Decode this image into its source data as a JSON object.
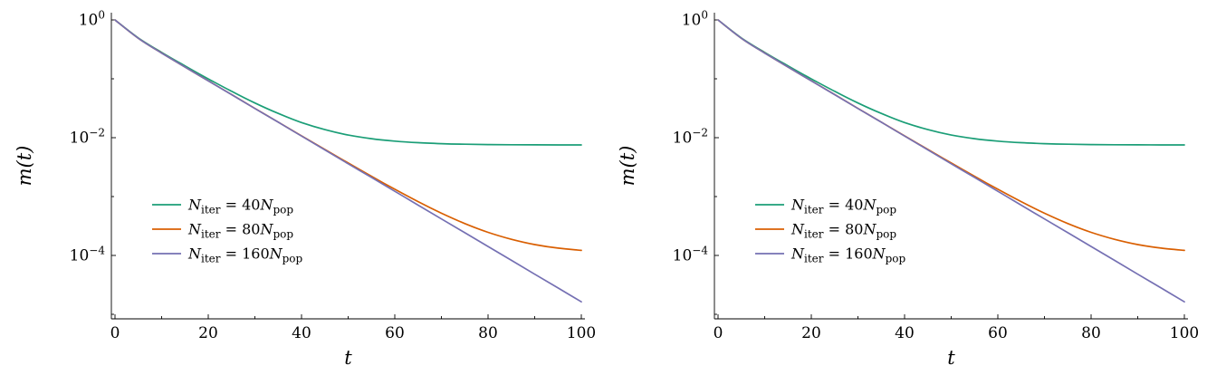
{
  "figure": {
    "background": "#ffffff",
    "panel_count": 2
  },
  "chart_data": [
    {
      "type": "line",
      "panel": "left",
      "title": "",
      "xlabel": "t",
      "ylabel": "m(t)",
      "xlim": [
        0,
        100
      ],
      "ylim": [
        1e-05,
        1
      ],
      "yscale": "log",
      "grid": false,
      "xticks": [
        0,
        20,
        40,
        60,
        80,
        100
      ],
      "xminorticks": [
        10,
        30,
        50,
        70,
        90
      ],
      "ytick_labels": [
        "10^0",
        "10^-2",
        "10^-4"
      ],
      "ytick_values": [
        1,
        0.01,
        0.0001
      ],
      "yminor_exponents": [
        -1,
        -3,
        -5
      ],
      "legend_position": "center-left",
      "axis_color": "#000000",
      "x": [
        0,
        5,
        10,
        15,
        20,
        25,
        30,
        35,
        40,
        45,
        50,
        55,
        60,
        65,
        70,
        75,
        80,
        85,
        90,
        95,
        100
      ],
      "series": [
        {
          "name": "N_iter = 40N_pop",
          "color": "#1b9e77",
          "plateau": 0.0075,
          "values": [
            1.0,
            0.495,
            0.281,
            0.166,
            0.0998,
            0.0613,
            0.0388,
            0.0258,
            0.0181,
            0.0137,
            0.0111,
            0.00961,
            0.00873,
            0.00822,
            0.00792,
            0.00774,
            0.00764,
            0.00758,
            0.00755,
            0.00753,
            0.00752
          ]
        },
        {
          "name": "N_iter = 80N_pop",
          "color": "#d95f02",
          "plateau": 0.000105,
          "values": [
            1.0,
            0.4874,
            0.274,
            0.1586,
            0.0924,
            0.0539,
            0.0314,
            0.0184,
            0.01075,
            0.00631,
            0.00372,
            0.00221,
            0.00133,
            0.00082,
            0.000522,
            0.000348,
            0.000247,
            0.000188,
            0.000153,
            0.000133,
            0.000122
          ]
        },
        {
          "name": "N_iter = 160N_pop",
          "color": "#7570b3",
          "plateau": 0,
          "values": [
            1.0,
            0.4873,
            0.2739,
            0.1585,
            0.0923,
            0.0538,
            0.0313,
            0.0183,
            0.01064,
            0.0062,
            0.00361,
            0.00211,
            0.00123,
            0.000715,
            0.000417,
            0.000243,
            0.000142,
            8.25e-05,
            4.81e-05,
            2.8e-05,
            1.63e-05
          ]
        }
      ]
    },
    {
      "type": "line",
      "panel": "right",
      "title": "",
      "xlabel": "t",
      "ylabel": "m(t)",
      "xlim": [
        0,
        100
      ],
      "ylim": [
        1e-05,
        1
      ],
      "yscale": "log",
      "grid": false,
      "xticks": [
        0,
        20,
        40,
        60,
        80,
        100
      ],
      "xminorticks": [
        10,
        30,
        50,
        70,
        90
      ],
      "ytick_labels": [
        "10^0",
        "10^-2",
        "10^-4"
      ],
      "ytick_values": [
        1,
        0.01,
        0.0001
      ],
      "yminor_exponents": [
        -1,
        -3,
        -5
      ],
      "legend_position": "center-left",
      "axis_color": "#000000",
      "x": [
        0,
        5,
        10,
        15,
        20,
        25,
        30,
        35,
        40,
        45,
        50,
        55,
        60,
        65,
        70,
        75,
        80,
        85,
        90,
        95,
        100
      ],
      "series": [
        {
          "name": "N_iter = 40N_pop",
          "color": "#1b9e77",
          "plateau": 0.0075,
          "values": [
            1.0,
            0.495,
            0.281,
            0.166,
            0.0998,
            0.0613,
            0.0388,
            0.0258,
            0.0181,
            0.0137,
            0.0111,
            0.00961,
            0.00873,
            0.00822,
            0.00792,
            0.00774,
            0.00764,
            0.00758,
            0.00755,
            0.00753,
            0.00752
          ]
        },
        {
          "name": "N_iter = 80N_pop",
          "color": "#d95f02",
          "plateau": 0.000105,
          "values": [
            1.0,
            0.4874,
            0.274,
            0.1586,
            0.0924,
            0.0539,
            0.0314,
            0.0184,
            0.01075,
            0.00631,
            0.00372,
            0.00221,
            0.00133,
            0.00082,
            0.000522,
            0.000348,
            0.000247,
            0.000188,
            0.000153,
            0.000133,
            0.000122
          ]
        },
        {
          "name": "N_iter = 160N_pop",
          "color": "#7570b3",
          "plateau": 0,
          "values": [
            1.0,
            0.4873,
            0.2739,
            0.1585,
            0.0923,
            0.0538,
            0.0313,
            0.0183,
            0.01064,
            0.0062,
            0.00361,
            0.00211,
            0.00123,
            0.000715,
            0.000417,
            0.000243,
            0.000142,
            8.25e-05,
            4.81e-05,
            2.8e-05,
            1.63e-05
          ]
        }
      ]
    }
  ]
}
